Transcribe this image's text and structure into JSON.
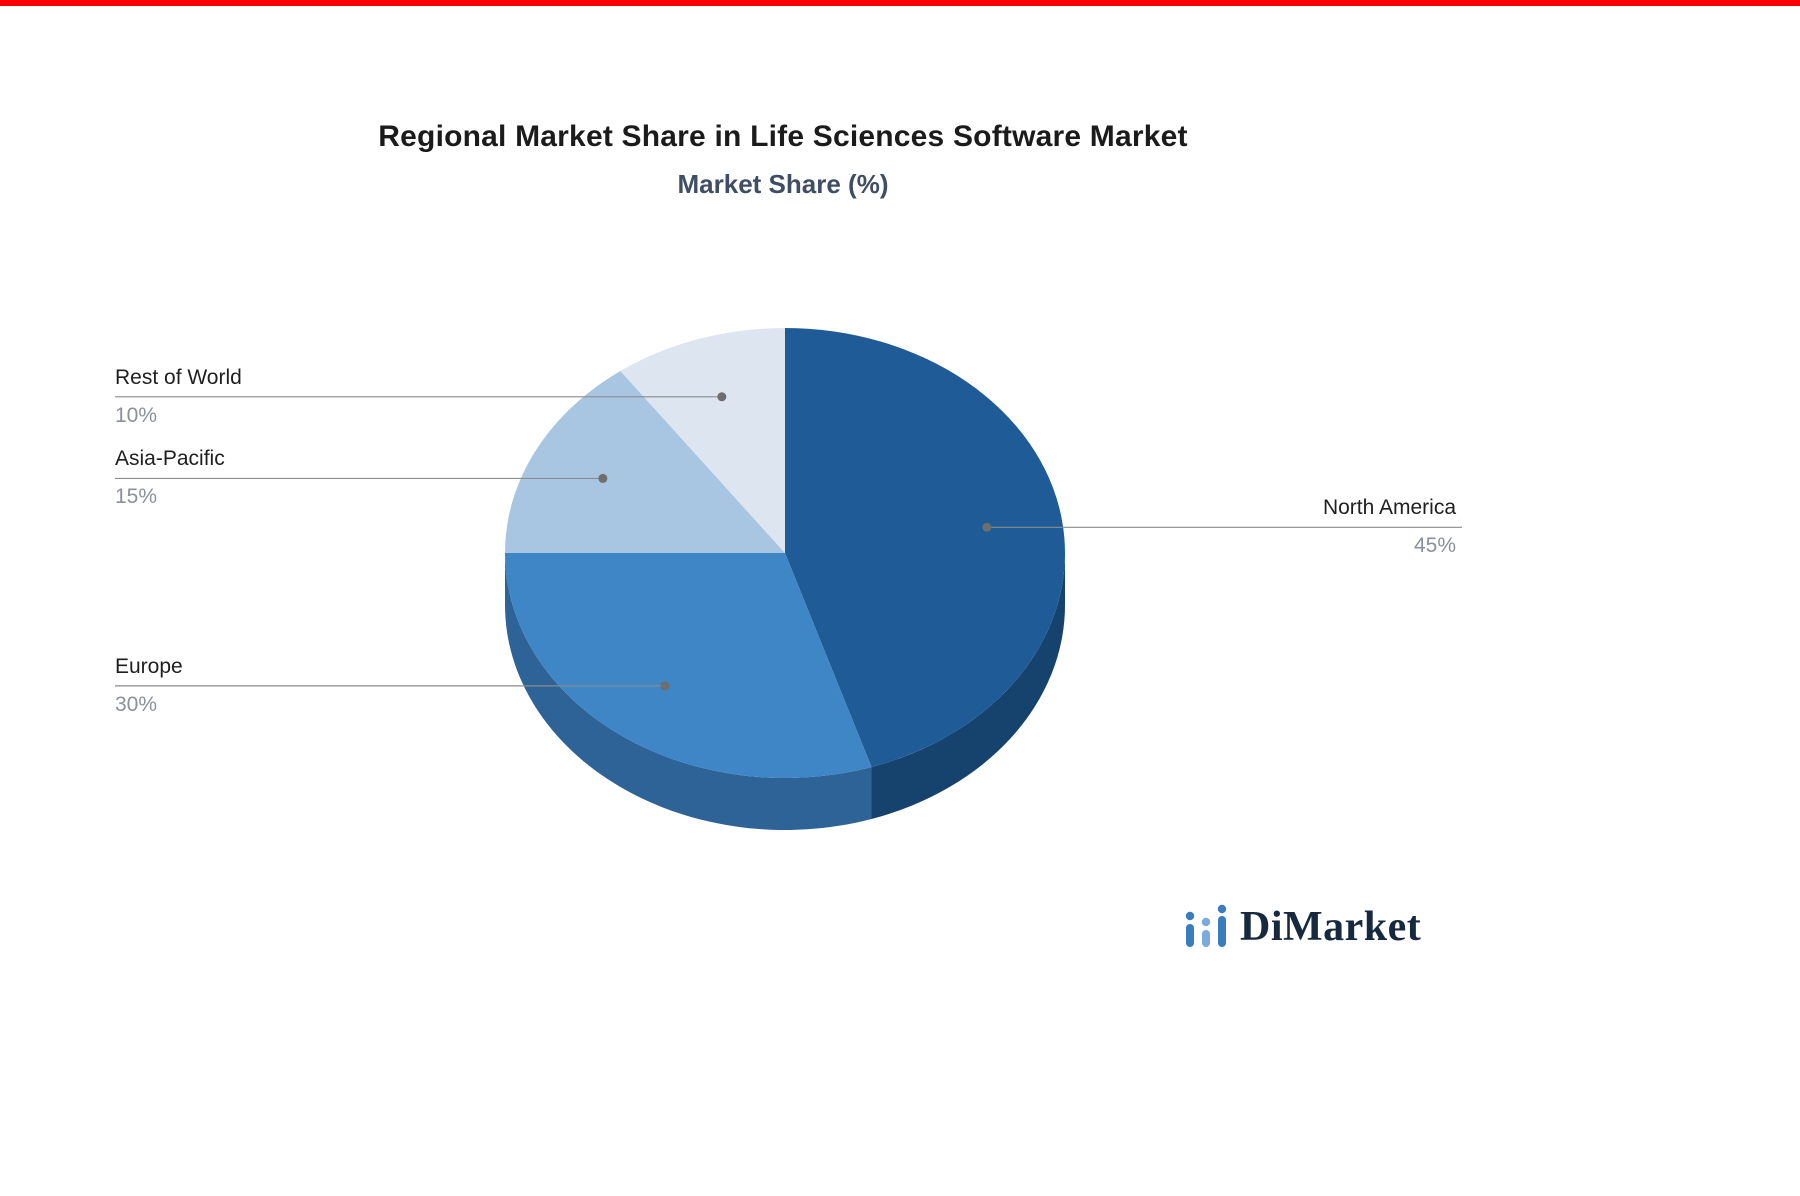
{
  "page": {
    "top_bar_color": "#ff0000",
    "background_color": "#ffffff"
  },
  "chart_data": {
    "type": "pie",
    "title": "Regional Market Share in Life Sciences Software Market",
    "subtitle": "Market Share (%)",
    "unit": "%",
    "effect": "3d",
    "direction": "clockwise",
    "start_angle": "top",
    "legend_position": "none",
    "leader_line_color": "#8c8c8c",
    "leader_dot_color": "#6e6e6e",
    "label_name_color": "#1f1f1f",
    "label_value_color": "#8b9099",
    "slices": [
      {
        "label": "North America",
        "value": 45,
        "display_value": "45%",
        "color": "#1f5c97",
        "side_color": "#16436d",
        "label_side": "right"
      },
      {
        "label": "Europe",
        "value": 30,
        "display_value": "30%",
        "color": "#3e86c6",
        "side_color": "#2d6396",
        "label_side": "left"
      },
      {
        "label": "Asia-Pacific",
        "value": 15,
        "display_value": "15%",
        "color": "#a8c5e1",
        "side_color": "#7f9cba",
        "label_side": "left"
      },
      {
        "label": "Rest of World",
        "value": 10,
        "display_value": "10%",
        "color": "#dde5f0",
        "side_color": "#b5c2d1",
        "label_side": "left"
      }
    ]
  },
  "brand": {
    "name": "DiMarket",
    "icon": "dimarket-bars-logo-icon",
    "icon_color": "#3a7cc0",
    "icon_color_light": "#7aabdb",
    "text_color": "#16293e"
  }
}
